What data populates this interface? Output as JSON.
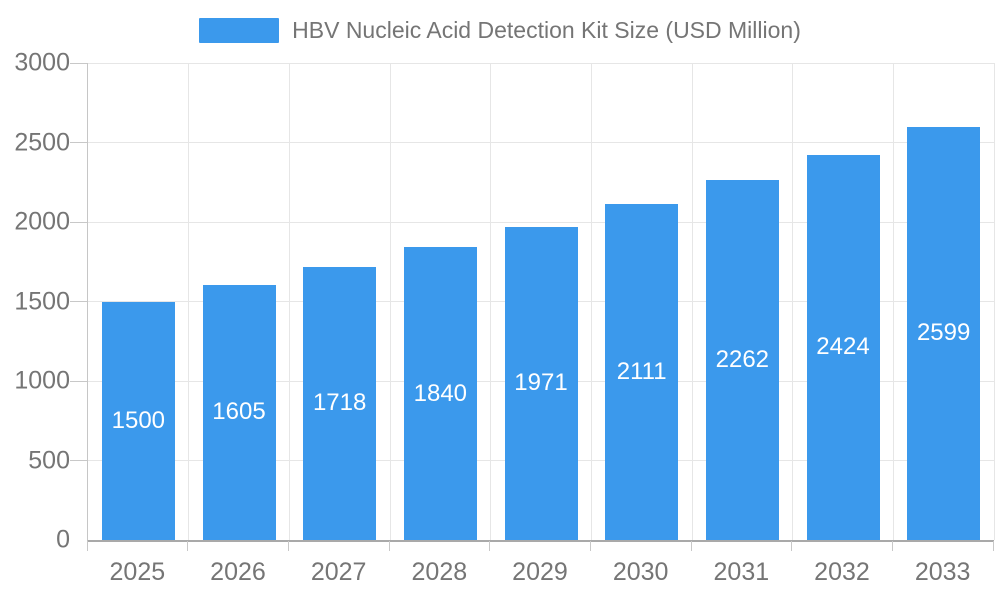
{
  "legend": {
    "label": "HBV Nucleic Acid Detection Kit Size (USD Million)"
  },
  "chart_data": {
    "type": "bar",
    "title": "HBV Nucleic Acid Detection Kit Size (USD Million)",
    "categories": [
      "2025",
      "2026",
      "2027",
      "2028",
      "2029",
      "2030",
      "2031",
      "2032",
      "2033"
    ],
    "series": [
      {
        "name": "HBV Nucleic Acid Detection Kit Size (USD Million)",
        "values": [
          1500,
          1605,
          1718,
          1840,
          1971,
          2111,
          2262,
          2424,
          2599
        ]
      }
    ],
    "values": [
      1500,
      1605,
      1718,
      1840,
      1971,
      2111,
      2262,
      2424,
      2599
    ],
    "data_labels": [
      1500,
      1605,
      1718,
      1840,
      1971,
      2111,
      2262,
      2424,
      2599
    ],
    "xlabel": "",
    "ylabel": "",
    "ylim": [
      0,
      3000
    ],
    "y_ticks": [
      0,
      500,
      1000,
      1500,
      2000,
      2500,
      3000
    ],
    "grid": true,
    "legend_position": "top"
  },
  "colors": {
    "bar": "#3b99ec",
    "grid": "#e6e6e6",
    "axis_line": "#a9a9a9",
    "tick": "#c8c8c8",
    "text": "#757575",
    "bar_label": "#ffffff",
    "background": "#ffffff"
  }
}
